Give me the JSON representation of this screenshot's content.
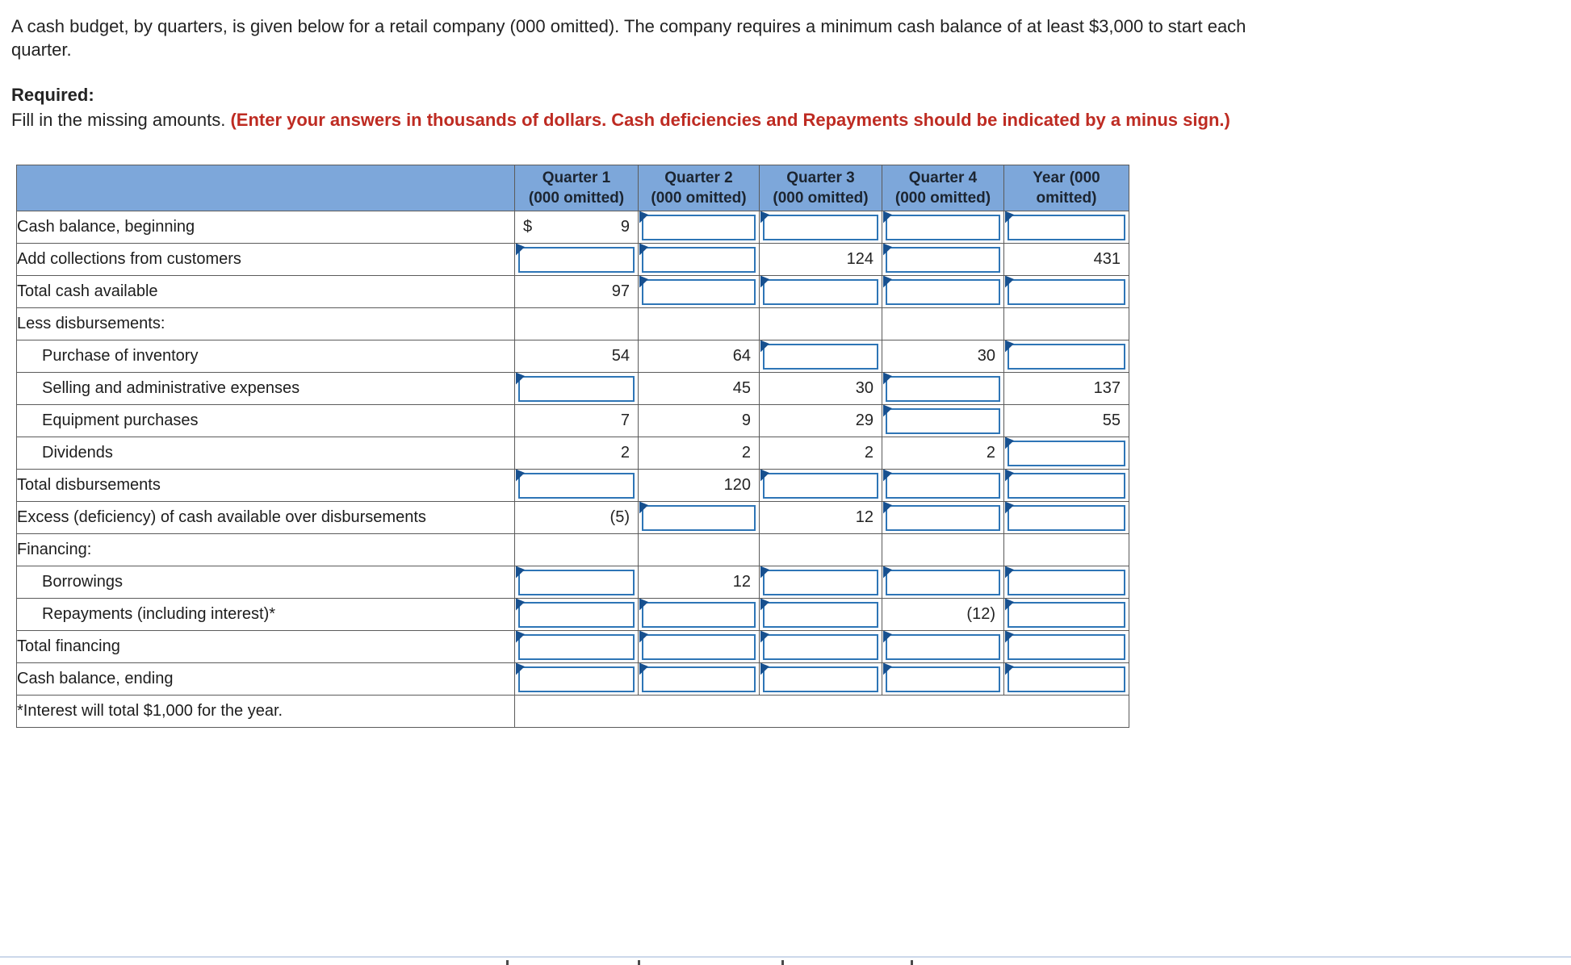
{
  "colors": {
    "header_bg": "#7DA7DA",
    "input_border": "#2E75B6",
    "marker": "#17508F",
    "emphasis_red": "#BE2B22",
    "grid": "#5B5B5B"
  },
  "intro": {
    "text": "A cash budget, by quarters, is given below for a retail company (000 omitted). The company requires a minimum cash balance of at least $3,000 to start each quarter."
  },
  "required": {
    "label": "Required:",
    "instruction": "Fill in the missing amounts. ",
    "instruction_emphasis": "(Enter your answers in thousands of dollars. Cash deficiencies and Repayments should be indicated by a minus sign.)"
  },
  "table": {
    "header": [
      {
        "line1": "",
        "line2": ""
      },
      {
        "line1": "Quarter 1",
        "line2": "(000 omitted)"
      },
      {
        "line1": "Quarter 2",
        "line2": "(000 omitted)"
      },
      {
        "line1": "Quarter 3",
        "line2": "(000 omitted)"
      },
      {
        "line1": "Quarter 4",
        "line2": "(000 omitted)"
      },
      {
        "line1": "Year (000",
        "line2": "omitted)"
      }
    ],
    "rows": [
      {
        "type": "data",
        "label": "Cash balance, beginning",
        "indent": 0,
        "cells": [
          {
            "type": "given",
            "prefix": "$",
            "value": "9"
          },
          {
            "type": "input",
            "value": ""
          },
          {
            "type": "input",
            "value": ""
          },
          {
            "type": "input",
            "value": ""
          },
          {
            "type": "input",
            "value": ""
          }
        ]
      },
      {
        "type": "data",
        "label": "Add collections from customers",
        "indent": 0,
        "cells": [
          {
            "type": "input",
            "value": ""
          },
          {
            "type": "input",
            "value": ""
          },
          {
            "type": "given",
            "value": "124"
          },
          {
            "type": "input",
            "value": ""
          },
          {
            "type": "given",
            "value": "431"
          }
        ]
      },
      {
        "type": "data",
        "label": "Total cash available",
        "indent": 0,
        "cells": [
          {
            "type": "given",
            "value": "97"
          },
          {
            "type": "input",
            "value": ""
          },
          {
            "type": "input",
            "value": ""
          },
          {
            "type": "input",
            "value": ""
          },
          {
            "type": "input",
            "value": ""
          }
        ]
      },
      {
        "type": "section",
        "label": "Less disbursements:",
        "indent": 0,
        "cells": [
          {
            "type": "empty"
          },
          {
            "type": "empty"
          },
          {
            "type": "empty"
          },
          {
            "type": "empty"
          },
          {
            "type": "empty"
          }
        ]
      },
      {
        "type": "data",
        "label": "Purchase of inventory",
        "indent": 1,
        "cells": [
          {
            "type": "given",
            "value": "54"
          },
          {
            "type": "given",
            "value": "64"
          },
          {
            "type": "input",
            "value": ""
          },
          {
            "type": "given",
            "value": "30"
          },
          {
            "type": "input",
            "value": ""
          }
        ]
      },
      {
        "type": "data",
        "label": "Selling and administrative expenses",
        "indent": 1,
        "cells": [
          {
            "type": "input",
            "value": ""
          },
          {
            "type": "given",
            "value": "45"
          },
          {
            "type": "given",
            "value": "30"
          },
          {
            "type": "input",
            "value": ""
          },
          {
            "type": "given",
            "value": "137"
          }
        ]
      },
      {
        "type": "data",
        "label": "Equipment purchases",
        "indent": 1,
        "cells": [
          {
            "type": "given",
            "value": "7"
          },
          {
            "type": "given",
            "value": "9"
          },
          {
            "type": "given",
            "value": "29"
          },
          {
            "type": "input",
            "value": ""
          },
          {
            "type": "given",
            "value": "55"
          }
        ]
      },
      {
        "type": "data",
        "label": "Dividends",
        "indent": 1,
        "cells": [
          {
            "type": "given",
            "value": "2"
          },
          {
            "type": "given",
            "value": "2"
          },
          {
            "type": "given",
            "value": "2"
          },
          {
            "type": "given",
            "value": "2"
          },
          {
            "type": "input",
            "value": ""
          }
        ]
      },
      {
        "type": "data",
        "label": "Total disbursements",
        "indent": 0,
        "cells": [
          {
            "type": "input",
            "value": ""
          },
          {
            "type": "given",
            "value": "120"
          },
          {
            "type": "input",
            "value": ""
          },
          {
            "type": "input",
            "value": ""
          },
          {
            "type": "input",
            "value": ""
          }
        ]
      },
      {
        "type": "data",
        "label": "Excess (deficiency) of cash available over disbursements",
        "indent": 0,
        "cells": [
          {
            "type": "given",
            "value": "(5)"
          },
          {
            "type": "input",
            "value": ""
          },
          {
            "type": "given",
            "value": "12"
          },
          {
            "type": "input",
            "value": ""
          },
          {
            "type": "input",
            "value": ""
          }
        ]
      },
      {
        "type": "section",
        "label": "Financing:",
        "indent": 0,
        "cells": [
          {
            "type": "empty"
          },
          {
            "type": "empty"
          },
          {
            "type": "empty"
          },
          {
            "type": "empty"
          },
          {
            "type": "empty"
          }
        ]
      },
      {
        "type": "data",
        "label": "Borrowings",
        "indent": 1,
        "cells": [
          {
            "type": "input",
            "value": ""
          },
          {
            "type": "given",
            "value": "12"
          },
          {
            "type": "input",
            "value": ""
          },
          {
            "type": "input",
            "value": ""
          },
          {
            "type": "input",
            "value": ""
          }
        ]
      },
      {
        "type": "data",
        "label": "Repayments (including interest)*",
        "indent": 1,
        "cells": [
          {
            "type": "input",
            "value": ""
          },
          {
            "type": "input",
            "value": ""
          },
          {
            "type": "input",
            "value": ""
          },
          {
            "type": "given",
            "value": "(12)"
          },
          {
            "type": "input",
            "value": ""
          }
        ]
      },
      {
        "type": "data",
        "label": "Total financing",
        "indent": 0,
        "cells": [
          {
            "type": "input",
            "value": ""
          },
          {
            "type": "input",
            "value": ""
          },
          {
            "type": "input",
            "value": ""
          },
          {
            "type": "input",
            "value": ""
          },
          {
            "type": "input",
            "value": ""
          }
        ]
      },
      {
        "type": "data",
        "label": "Cash balance, ending",
        "indent": 0,
        "cells": [
          {
            "type": "input",
            "value": ""
          },
          {
            "type": "input",
            "value": ""
          },
          {
            "type": "input",
            "value": ""
          },
          {
            "type": "input",
            "value": ""
          },
          {
            "type": "input",
            "value": ""
          }
        ]
      },
      {
        "type": "footnote",
        "label": "*Interest will total $1,000 for the year."
      }
    ]
  }
}
